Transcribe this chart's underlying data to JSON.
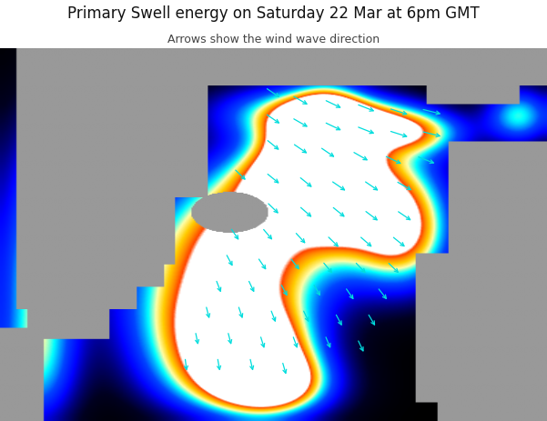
{
  "title": "Primary Swell energy on Saturday 22 Mar at 6pm GMT",
  "subtitle": "Arrows show the wind wave direction",
  "title_fontsize": 12,
  "subtitle_fontsize": 9,
  "fig_width": 6.01,
  "fig_height": 4.63,
  "dpi": 100,
  "background_color": "#ffffff",
  "title_color": "#111111",
  "arrow_color": "#00dddd",
  "arrows": [
    [
      0.5,
      0.88,
      315
    ],
    [
      0.55,
      0.86,
      320
    ],
    [
      0.61,
      0.85,
      325
    ],
    [
      0.67,
      0.84,
      330
    ],
    [
      0.73,
      0.83,
      335
    ],
    [
      0.79,
      0.83,
      340
    ],
    [
      0.5,
      0.81,
      315
    ],
    [
      0.55,
      0.8,
      320
    ],
    [
      0.61,
      0.79,
      325
    ],
    [
      0.67,
      0.78,
      330
    ],
    [
      0.73,
      0.77,
      335
    ],
    [
      0.79,
      0.77,
      340
    ],
    [
      0.5,
      0.74,
      310
    ],
    [
      0.55,
      0.73,
      315
    ],
    [
      0.6,
      0.72,
      315
    ],
    [
      0.66,
      0.71,
      320
    ],
    [
      0.72,
      0.7,
      325
    ],
    [
      0.78,
      0.7,
      330
    ],
    [
      0.44,
      0.66,
      305
    ],
    [
      0.5,
      0.65,
      310
    ],
    [
      0.56,
      0.64,
      310
    ],
    [
      0.62,
      0.63,
      315
    ],
    [
      0.68,
      0.63,
      315
    ],
    [
      0.74,
      0.63,
      320
    ],
    [
      0.44,
      0.58,
      300
    ],
    [
      0.5,
      0.57,
      305
    ],
    [
      0.56,
      0.56,
      308
    ],
    [
      0.62,
      0.56,
      310
    ],
    [
      0.68,
      0.55,
      312
    ],
    [
      0.74,
      0.55,
      315
    ],
    [
      0.43,
      0.5,
      295
    ],
    [
      0.49,
      0.5,
      300
    ],
    [
      0.55,
      0.49,
      302
    ],
    [
      0.61,
      0.48,
      305
    ],
    [
      0.67,
      0.48,
      308
    ],
    [
      0.73,
      0.48,
      310
    ],
    [
      0.42,
      0.43,
      290
    ],
    [
      0.48,
      0.42,
      295
    ],
    [
      0.54,
      0.42,
      298
    ],
    [
      0.6,
      0.41,
      300
    ],
    [
      0.66,
      0.41,
      303
    ],
    [
      0.72,
      0.41,
      305
    ],
    [
      0.4,
      0.36,
      285
    ],
    [
      0.46,
      0.36,
      288
    ],
    [
      0.52,
      0.35,
      290
    ],
    [
      0.58,
      0.35,
      292
    ],
    [
      0.64,
      0.34,
      295
    ],
    [
      0.7,
      0.34,
      298
    ],
    [
      0.38,
      0.29,
      280
    ],
    [
      0.44,
      0.29,
      283
    ],
    [
      0.5,
      0.28,
      285
    ],
    [
      0.56,
      0.28,
      288
    ],
    [
      0.62,
      0.27,
      290
    ],
    [
      0.68,
      0.27,
      292
    ],
    [
      0.36,
      0.22,
      278
    ],
    [
      0.42,
      0.22,
      280
    ],
    [
      0.48,
      0.21,
      282
    ],
    [
      0.54,
      0.21,
      284
    ],
    [
      0.6,
      0.21,
      286
    ],
    [
      0.66,
      0.2,
      288
    ],
    [
      0.34,
      0.15,
      275
    ],
    [
      0.4,
      0.15,
      277
    ],
    [
      0.46,
      0.15,
      279
    ],
    [
      0.52,
      0.14,
      281
    ],
    [
      0.08,
      0.7,
      10
    ],
    [
      0.08,
      0.62,
      12
    ],
    [
      0.08,
      0.54,
      15
    ],
    [
      0.08,
      0.46,
      18
    ],
    [
      0.08,
      0.38,
      20
    ],
    [
      0.08,
      0.3,
      22
    ],
    [
      0.14,
      0.67,
      12
    ],
    [
      0.14,
      0.59,
      15
    ],
    [
      0.14,
      0.51,
      18
    ],
    [
      0.14,
      0.43,
      20
    ],
    [
      0.14,
      0.35,
      22
    ],
    [
      0.14,
      0.27,
      25
    ],
    [
      0.2,
      0.64,
      15
    ],
    [
      0.2,
      0.56,
      18
    ],
    [
      0.2,
      0.48,
      20
    ],
    [
      0.2,
      0.4,
      22
    ],
    [
      0.2,
      0.32,
      25
    ]
  ]
}
